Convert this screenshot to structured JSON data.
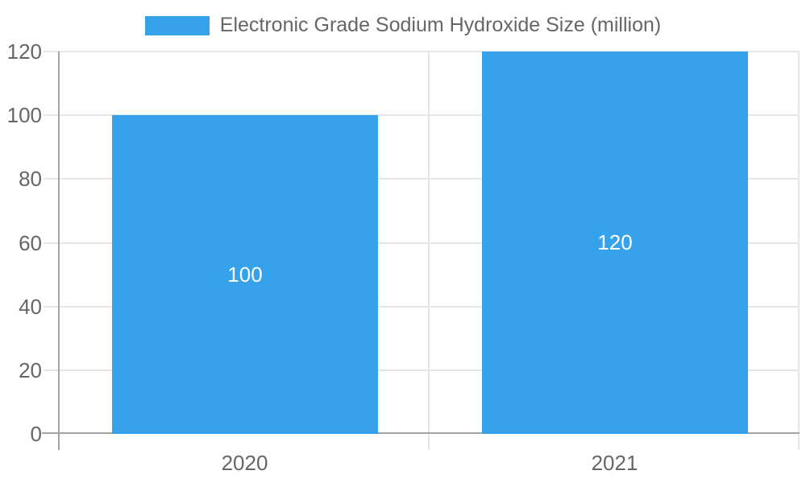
{
  "chart_data": {
    "type": "bar",
    "title": "Electronic Grade Sodium Hydroxide Size (million)",
    "legend": {
      "position": "top",
      "items": [
        {
          "label": "Electronic Grade Sodium Hydroxide Size (million)",
          "color": "#36A2EB"
        }
      ]
    },
    "categories": [
      "2020",
      "2021"
    ],
    "series": [
      {
        "name": "Electronic Grade Sodium Hydroxide Size (million)",
        "values": [
          100,
          120
        ]
      }
    ],
    "bar_value_labels": [
      "100",
      "120"
    ],
    "xlabel": "",
    "ylabel": "",
    "ylim": [
      0,
      120
    ],
    "yticks": [
      0,
      20,
      40,
      60,
      80,
      100,
      120
    ],
    "grid": true,
    "legend_entry": "Electronic Grade Sodium Hydroxide Size (million)",
    "colors": {
      "bar": "#36A2EB",
      "bar_label_text": "#ffffff",
      "axis_text": "#666666",
      "gridline": "#e6e6e6",
      "axis_line": "#a3a3a3",
      "background": "#ffffff"
    }
  }
}
